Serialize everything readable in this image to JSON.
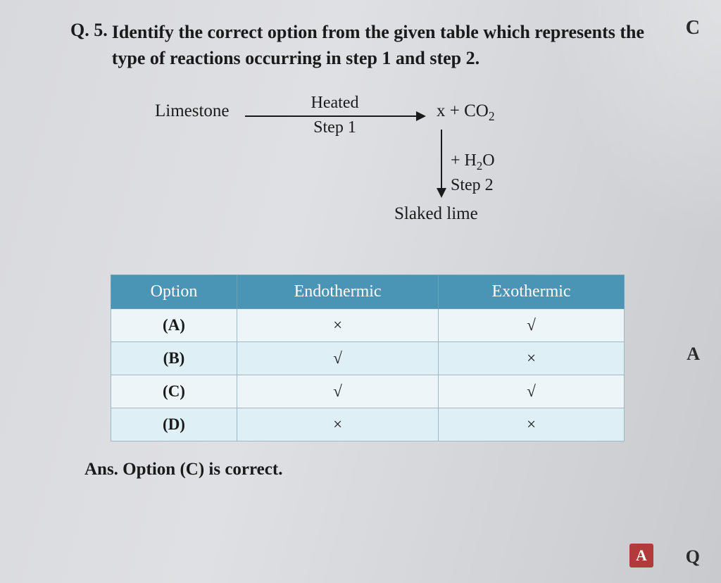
{
  "question": {
    "number": "Q. 5.",
    "text": "Identify the correct option from the given table which represents the type of reactions occurring in step 1 and step 2."
  },
  "diagram": {
    "reactant": "Limestone",
    "arrow1_top": "Heated",
    "arrow1_bottom": "Step 1",
    "product1_prefix": "x + CO",
    "product1_sub": "2",
    "arrow2_reagent_prefix": "+ H",
    "arrow2_reagent_sub": "2",
    "arrow2_reagent_suffix": "O",
    "arrow2_step": "Step 2",
    "product2": "Slaked lime"
  },
  "table": {
    "headers": [
      "Option",
      "Endothermic",
      "Exothermic"
    ],
    "rows": [
      {
        "opt": "(A)",
        "endo": "×",
        "exo": "√"
      },
      {
        "opt": "(B)",
        "endo": "√",
        "exo": "×"
      },
      {
        "opt": "(C)",
        "endo": "√",
        "exo": "√"
      },
      {
        "opt": "(D)",
        "endo": "×",
        "exo": "×"
      }
    ],
    "header_bg": "#4a94b5",
    "header_border": "#6aa0b8",
    "cell_border": "#9fb8c4",
    "row_bg_light": "#eef5f8",
    "row_bg_alt": "#def0f6"
  },
  "answer": "Ans. Option (C) is correct.",
  "badge": {
    "text": "A",
    "bg": "#b23a3a"
  },
  "edge": {
    "top_letter": "C",
    "mid_letter": "A",
    "bottom_letter": "Q"
  }
}
